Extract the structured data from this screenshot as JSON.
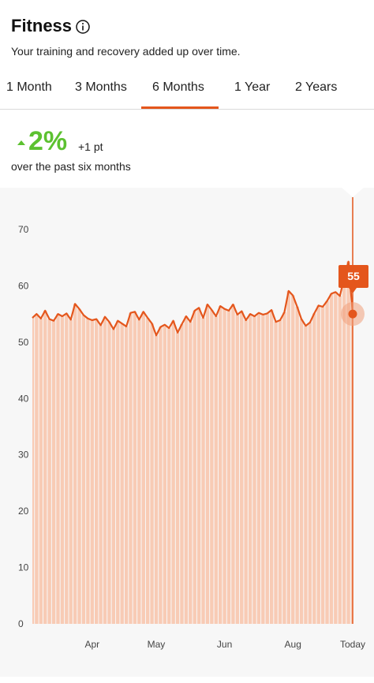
{
  "header": {
    "title": "Fitness",
    "subtitle": "Your training and recovery added up over time.",
    "info_icon": "info-circle-icon"
  },
  "tabs": [
    {
      "label": "1 Month"
    },
    {
      "label": "3 Months"
    },
    {
      "label": "6 Months",
      "selected": true
    },
    {
      "label": "1 Year"
    },
    {
      "label": "2 Years"
    }
  ],
  "summary": {
    "change_percent": "2%",
    "change_points": "+1 pt",
    "period": "over the past six months",
    "trend_icon": "up-triangle-icon"
  },
  "tooltip": {
    "value": "55"
  },
  "colors": {
    "accent": "#e4561c",
    "fill": "#f8cbb5",
    "positive": "#5cc130"
  },
  "chart_data": {
    "type": "area",
    "ylim": [
      0,
      70
    ],
    "y_ticks": [
      "0",
      "10",
      "20",
      "30",
      "40",
      "50",
      "60",
      "70"
    ],
    "x_ticks": [
      "Apr",
      "May",
      "Jun",
      "Aug",
      "Today"
    ],
    "x_tick_index": [
      14,
      29,
      45,
      61,
      75
    ],
    "series": [
      {
        "values": [
          54.3,
          55.0,
          54.2,
          55.6,
          54.1,
          53.8,
          55.0,
          54.6,
          55.1,
          54.0,
          56.8,
          55.9,
          54.8,
          54.2,
          53.9,
          54.1,
          53.0,
          54.5,
          53.6,
          52.3,
          53.8,
          53.3,
          52.8,
          55.2,
          55.4,
          54.0,
          55.4,
          54.3,
          53.3,
          51.2,
          52.7,
          53.1,
          52.5,
          53.8,
          51.7,
          53.2,
          54.6,
          53.6,
          55.6,
          56.1,
          54.3,
          56.7,
          55.7,
          54.6,
          56.4,
          55.9,
          55.6,
          56.7,
          54.9,
          55.5,
          53.9,
          55.0,
          54.6,
          55.2,
          54.9,
          55.1,
          55.7,
          53.6,
          53.9,
          55.3,
          59.1,
          58.3,
          56.3,
          54.1,
          52.9,
          53.5,
          55.1,
          56.5,
          56.3,
          57.3,
          58.6,
          58.9,
          58.2,
          61.4,
          64.3,
          55.0
        ]
      }
    ]
  }
}
